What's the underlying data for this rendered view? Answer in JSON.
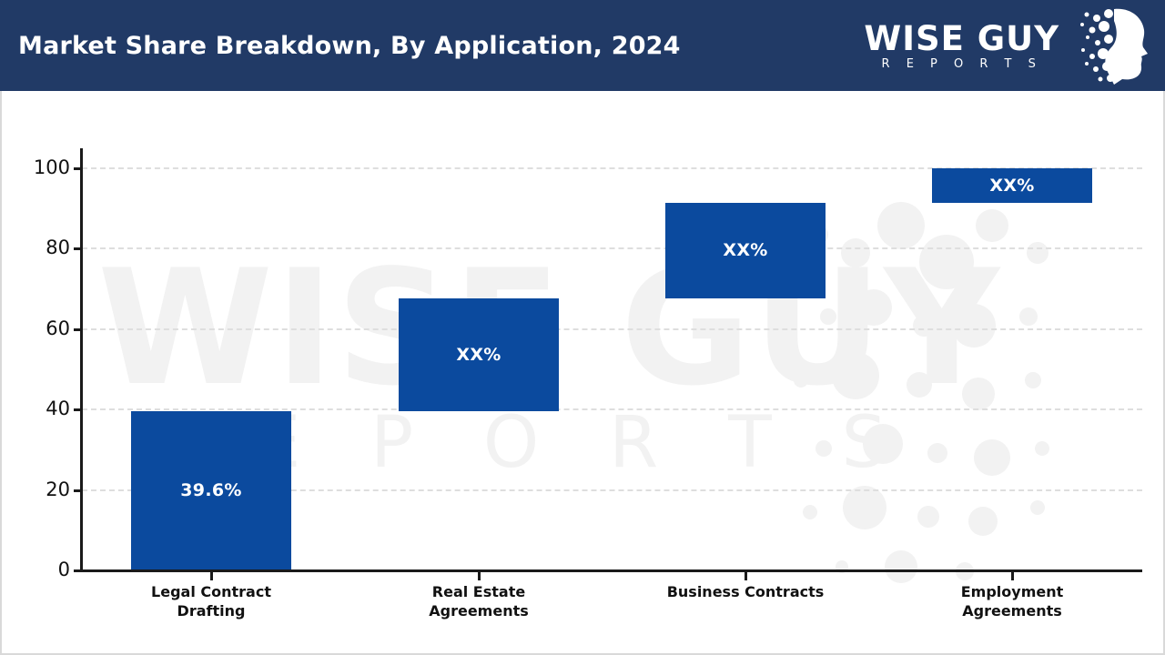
{
  "header": {
    "title": "Market Share Breakdown, By Application, 2024",
    "background_color": "#213a66",
    "logo": {
      "line1": "WISE GUY",
      "line2": "R E P O R T S",
      "face_icon": "dotted-face-profile"
    }
  },
  "watermark": {
    "line1": "WISE GUY",
    "line2": "R E P O R T S",
    "color": "#f2f2f2"
  },
  "chart_data": {
    "type": "bar",
    "subtype": "waterfall-floating-bars",
    "title": "Market Share Breakdown, By Application, 2024",
    "categories": [
      "Legal Contract Drafting",
      "Real Estate Agreements",
      "Business Contracts",
      "Employment Agreements"
    ],
    "categories_display": [
      [
        "Legal Contract",
        "Drafting"
      ],
      [
        "Real Estate",
        "Agreements"
      ],
      [
        "Business Contracts"
      ],
      [
        "Employment",
        "Agreements"
      ]
    ],
    "segments": [
      {
        "label": "Legal Contract Drafting",
        "start": 0,
        "end": 39.6,
        "value": 39.6,
        "value_label": "39.6%"
      },
      {
        "label": "Real Estate Agreements",
        "start": 39.6,
        "end": 67.7,
        "value": 28.1,
        "value_label": "XX%"
      },
      {
        "label": "Business Contracts",
        "start": 67.7,
        "end": 91.4,
        "value": 23.7,
        "value_label": "XX%"
      },
      {
        "label": "Employment Agreements",
        "start": 91.4,
        "end": 100,
        "value": 8.6,
        "value_label": "XX%"
      }
    ],
    "yticks": [
      0,
      20,
      40,
      60,
      80,
      100
    ],
    "ylim": [
      0,
      105
    ],
    "xlabel": "",
    "ylabel": "",
    "bar_color": "#0b4a9e",
    "grid": "horizontal-dashed",
    "legend": "none",
    "value_label_color": "#ffffff"
  }
}
